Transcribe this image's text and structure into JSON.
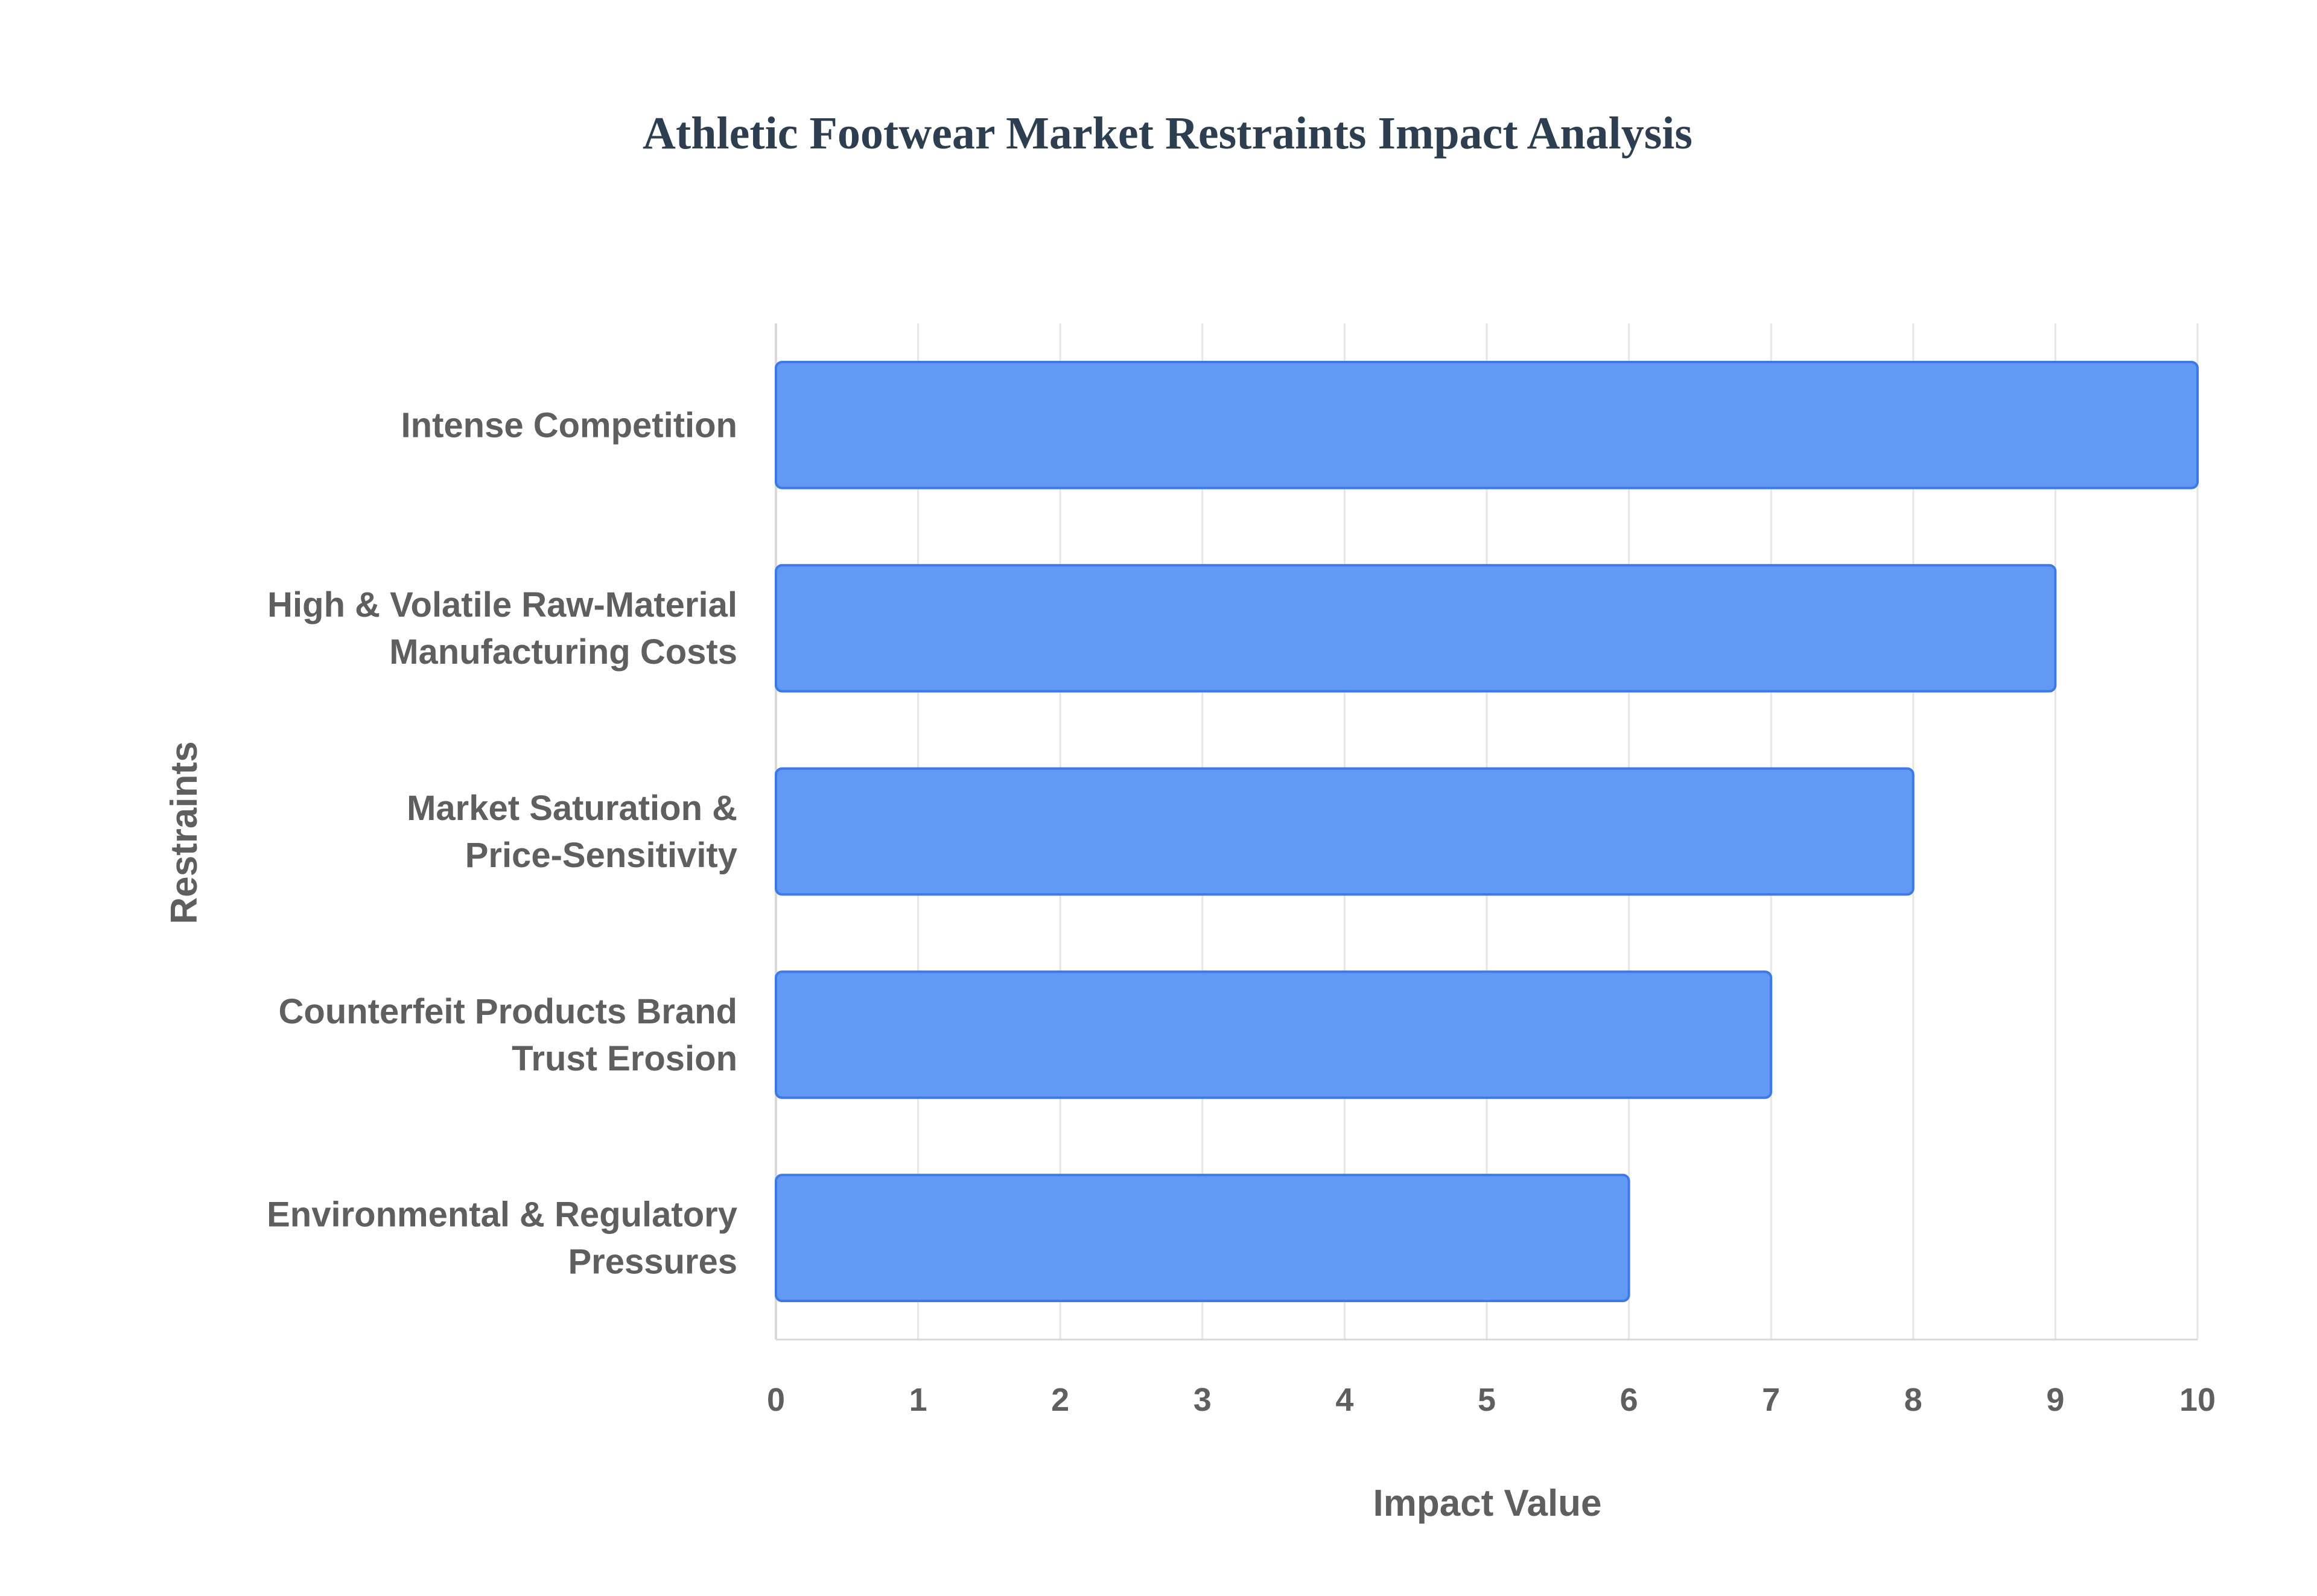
{
  "chart_data": {
    "type": "bar",
    "orientation": "horizontal",
    "title": "Athletic Footwear Market Restraints Impact Analysis",
    "xlabel": "Impact Value",
    "ylabel": "Restraints",
    "xlim": [
      0,
      10
    ],
    "x_ticks": [
      "0",
      "1",
      "2",
      "3",
      "4",
      "5",
      "6",
      "7",
      "8",
      "9",
      "10"
    ],
    "grid": true,
    "legend": "none",
    "categories": [
      [
        "Intense Competition"
      ],
      [
        "High & Volatile Raw-Material",
        "Manufacturing Costs"
      ],
      [
        "Market Saturation &",
        "Price-Sensitivity"
      ],
      [
        "Counterfeit Products Brand",
        "Trust Erosion"
      ],
      [
        "Environmental & Regulatory",
        "Pressures"
      ]
    ],
    "values": [
      10,
      9,
      8,
      7,
      6
    ],
    "colors": {
      "bar_fill": "#6199f5",
      "bar_stroke": "#3d7ae8",
      "title": "#2c3e50",
      "label": "#5f5f5f",
      "grid": "#e6e6e6",
      "axis": "#d9d9d9"
    }
  }
}
